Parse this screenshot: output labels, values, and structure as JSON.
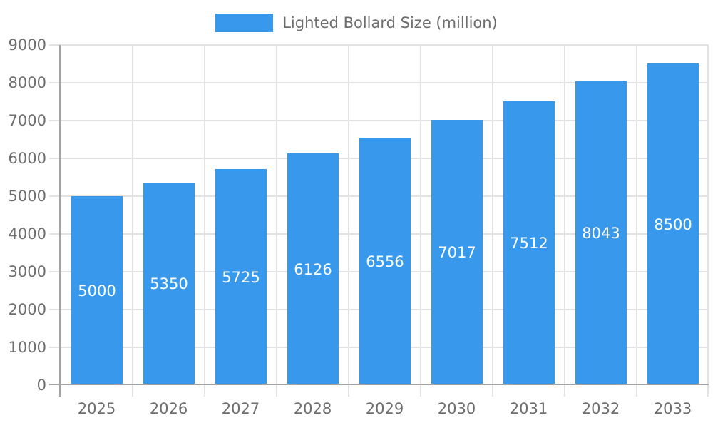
{
  "legend": {
    "label": "Lighted Bollard Size (million)"
  },
  "chart_data": {
    "type": "bar",
    "title": "",
    "categories": [
      "2025",
      "2026",
      "2027",
      "2028",
      "2029",
      "2030",
      "2031",
      "2032",
      "2033"
    ],
    "series": [
      {
        "name": "Lighted Bollard Size (million)",
        "values": [
          5000,
          5350,
          5725,
          6126,
          6556,
          7017,
          7512,
          8043,
          8500
        ]
      }
    ],
    "data_labels_shown": true,
    "xlabel": "",
    "ylabel": "",
    "ylim": [
      0,
      9000
    ],
    "y_ticks": [
      0,
      1000,
      2000,
      3000,
      4000,
      5000,
      6000,
      7000,
      8000,
      9000
    ],
    "grid": true,
    "legend_position": "top-center"
  },
  "colors": {
    "bar": "#3899EC",
    "grid": "#e3e3e3",
    "axis": "#a3a3a3",
    "tick_text": "#6e6e6e",
    "data_label": "#ffffff",
    "background": "#ffffff"
  }
}
